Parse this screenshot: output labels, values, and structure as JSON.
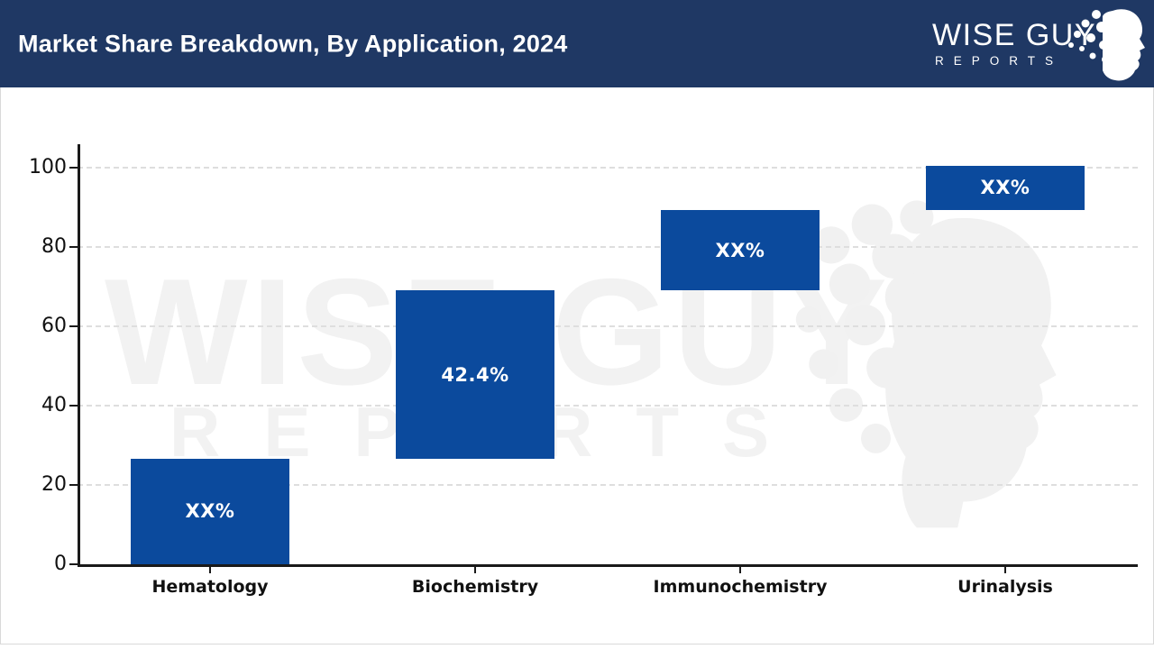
{
  "header": {
    "title": "Market Share Breakdown, By Application, 2024",
    "logo": {
      "line1": "WISE GUY",
      "line2": "REPORTS"
    }
  },
  "watermark": {
    "line1": "WISE GUY",
    "line2": "REPORTS"
  },
  "colors": {
    "header_bg": "#1f3864",
    "bar": "#0b4a9d",
    "bar_label": "#ffffff",
    "watermark": "#f2f2f2",
    "gridline": "#dedede",
    "axis": "#1a1a1a"
  },
  "chart_data": {
    "type": "bar",
    "subtype": "waterfall",
    "title": "Market Share Breakdown, By Application, 2024",
    "categories": [
      "Hematology",
      "Biochemistry",
      "Immunochemistry",
      "Urinalysis"
    ],
    "segments": [
      {
        "category": "Hematology",
        "start": 0,
        "end": 26.6,
        "value": 26.6,
        "label": "XX%"
      },
      {
        "category": "Biochemistry",
        "start": 26.6,
        "end": 69.0,
        "value": 42.4,
        "label": "42.4%"
      },
      {
        "category": "Immunochemistry",
        "start": 69.0,
        "end": 89.4,
        "value": 20.4,
        "label": "XX%"
      },
      {
        "category": "Urinalysis",
        "start": 89.4,
        "end": 100.4,
        "value": 11.0,
        "label": "XX%"
      }
    ],
    "xlabel": "",
    "ylabel": "",
    "yticks": [
      0,
      20,
      40,
      60,
      80,
      100
    ],
    "ylim": [
      0,
      106
    ],
    "grid": "horizontal-dashed",
    "legend": "none"
  }
}
